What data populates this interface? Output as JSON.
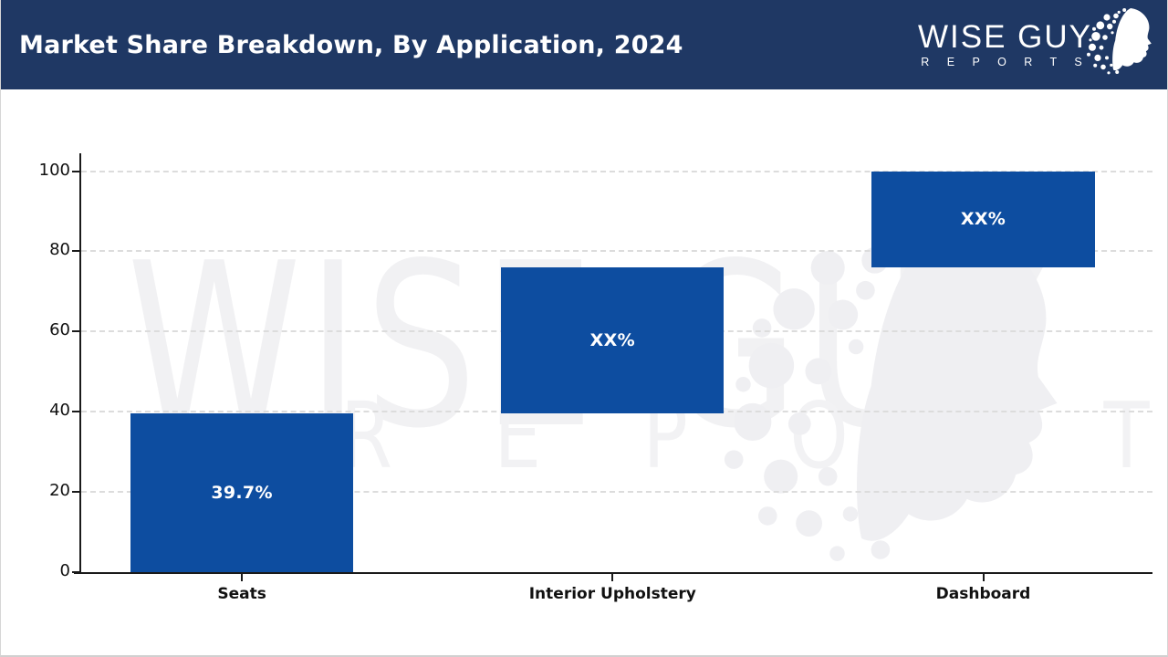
{
  "page": {
    "background": "#ffffff",
    "header_color": "#1f3864",
    "bar_color": "#0d4da0",
    "grid_color": "#dcdcdc",
    "border_color": "#d6d6d6"
  },
  "header": {
    "title": "Market Share Breakdown, By Application, 2024",
    "logo_line1": "WISE GUY",
    "logo_line2": "R E P O R T S"
  },
  "watermark": {
    "line1": "WISE GUY",
    "line2": "R E P O R T S"
  },
  "chart_data": {
    "type": "bar",
    "subtype": "waterfall",
    "title": "Market Share Breakdown, By Application, 2024",
    "categories": [
      "Seats",
      "Interior Upholstery",
      "Dashboard"
    ],
    "segments": [
      {
        "category": "Seats",
        "start": 0,
        "end": 39.7,
        "label": "39.7%"
      },
      {
        "category": "Interior Upholstery",
        "start": 39.7,
        "end": 76,
        "label": "XX%"
      },
      {
        "category": "Dashboard",
        "start": 76,
        "end": 100,
        "label": "XX%"
      }
    ],
    "xlabel": "",
    "ylabel": "",
    "yticks": [
      0,
      20,
      40,
      60,
      80,
      100
    ],
    "ylim": [
      0,
      104
    ],
    "grid": "dashed-horizontal",
    "legend": "none",
    "bar_color": "#0d4da0",
    "label_color": "#ffffff",
    "layout": {
      "center_fracs": [
        0.15,
        0.496,
        0.842
      ],
      "bar_width_frac": 0.208
    }
  }
}
